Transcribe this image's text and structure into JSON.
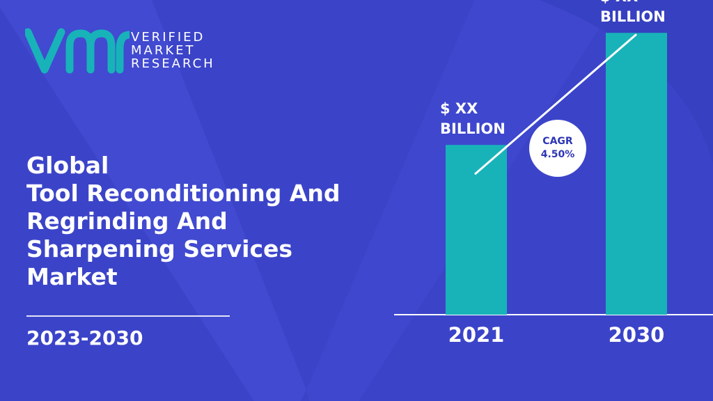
{
  "brand": {
    "line1": "VERIFIED",
    "line2": "MARKET",
    "line3": "RESEARCH",
    "colors": {
      "teal": "#18b3b9",
      "background": "#3b44c8",
      "accent_dark": "#2e36b5"
    }
  },
  "headline": {
    "line1": "Global",
    "line2": "Tool Reconditioning And",
    "line3": "Regrinding And",
    "line4": "Sharpening Services",
    "line5": "Market"
  },
  "period": "2023-2030",
  "chart_data": {
    "type": "bar",
    "categories": [
      "2021",
      "2030"
    ],
    "values": [
      0.53,
      0.88
    ],
    "value_labels": [
      {
        "line1": "$ XX",
        "line2": "BILLION"
      },
      {
        "line1": "$ XX",
        "line2": "BILLION"
      }
    ],
    "annotation": {
      "line1": "CAGR",
      "line2": "4.50%"
    },
    "ylim": [
      0,
      1
    ],
    "grid": false,
    "bar_color": "#18b3b9"
  }
}
